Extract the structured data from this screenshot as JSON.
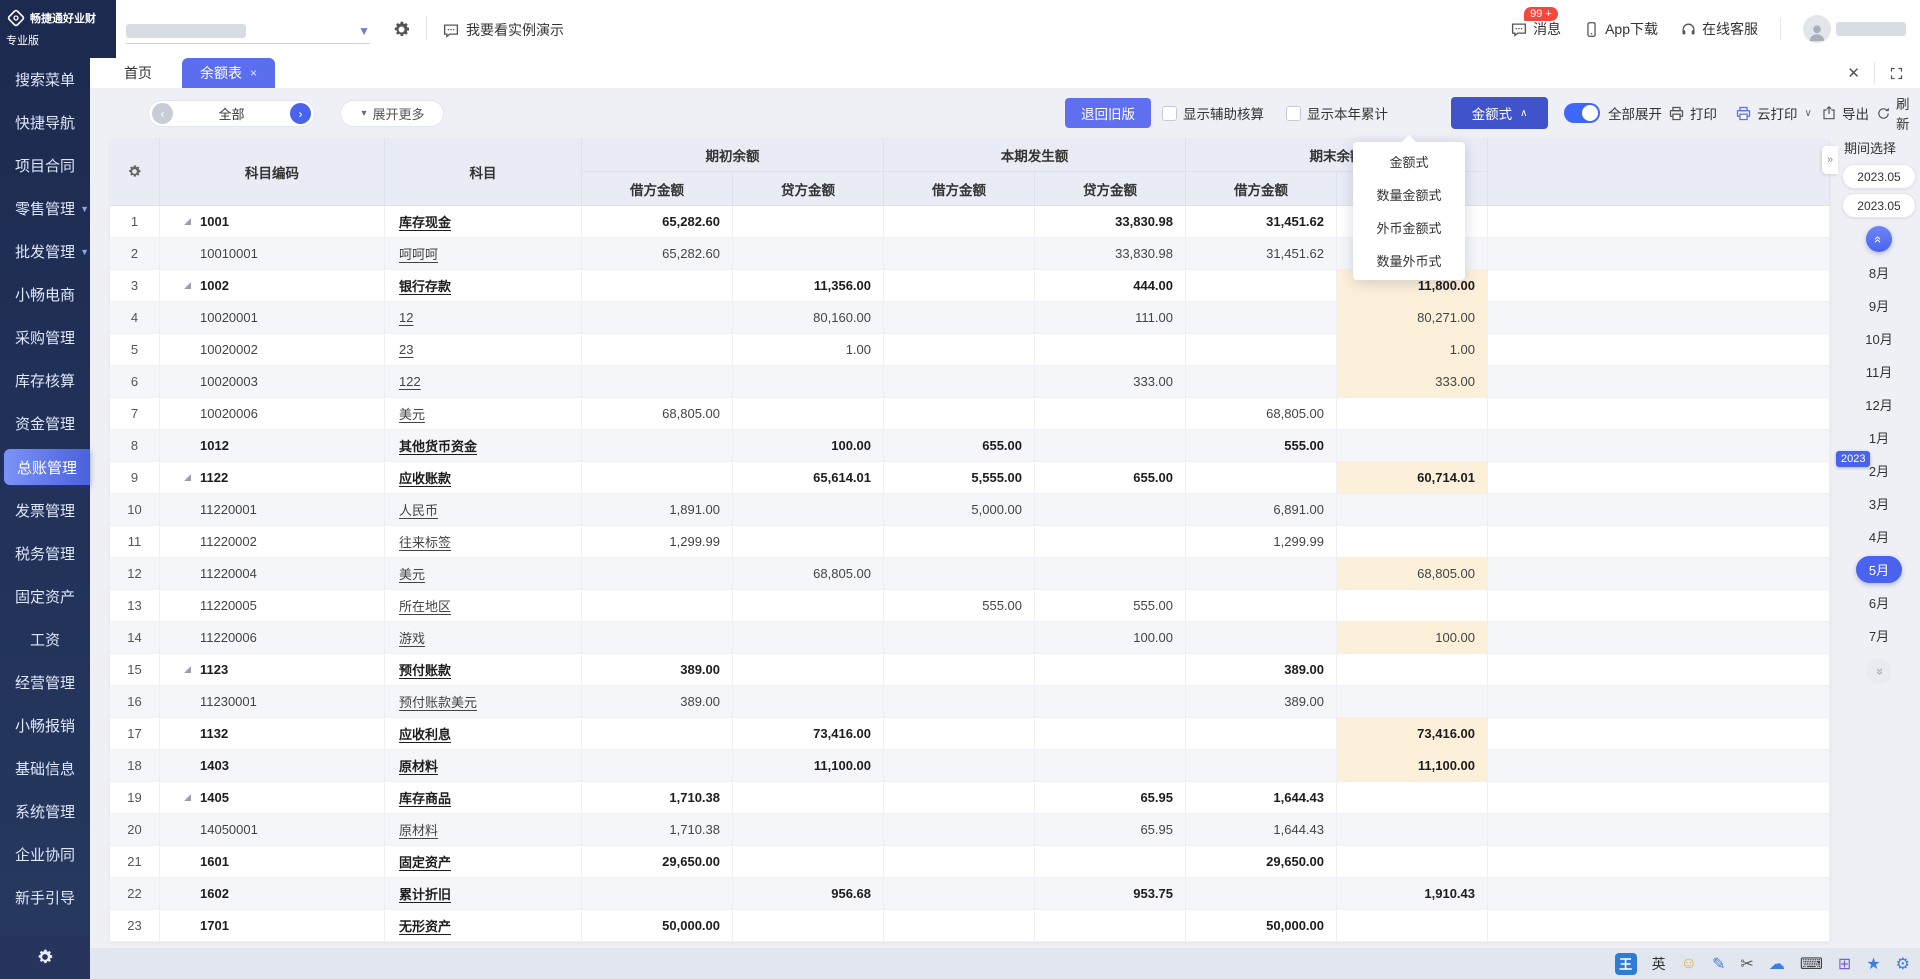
{
  "brand": {
    "name": "畅捷通好业财",
    "edition": "专业版"
  },
  "topbar": {
    "demo": "我要看实例演示",
    "messages": "消息",
    "badge": "99 +",
    "app_download": "App下载",
    "support": "在线客服"
  },
  "tabs": [
    {
      "label": "首页",
      "active": false
    },
    {
      "label": "余额表",
      "active": true,
      "close": "×"
    }
  ],
  "filter": {
    "all": "全部",
    "expand_more": "展开更多"
  },
  "actions": {
    "back_old": "退回旧版",
    "show_aux": "显示辅助核算",
    "show_ytd": "显示本年累计",
    "format": "金额式",
    "expand_all": "全部展开",
    "print": "打印",
    "cloud_print": "云打印",
    "export": "导出",
    "refresh": "刷新"
  },
  "format_menu": [
    "金额式",
    "数量金额式",
    "外币金额式",
    "数量外币式"
  ],
  "sidebar": {
    "items": [
      {
        "label": "搜索菜单"
      },
      {
        "label": "快捷导航"
      },
      {
        "label": "项目合同"
      },
      {
        "label": "零售管理",
        "arrow": true
      },
      {
        "label": "批发管理",
        "arrow": true
      },
      {
        "label": "小畅电商"
      },
      {
        "label": "采购管理"
      },
      {
        "label": "库存核算"
      },
      {
        "label": "资金管理"
      },
      {
        "label": "总账管理",
        "active": true
      },
      {
        "label": "发票管理"
      },
      {
        "label": "税务管理"
      },
      {
        "label": "固定资产"
      },
      {
        "label": "工资"
      },
      {
        "label": "经营管理"
      },
      {
        "label": "小畅报销"
      },
      {
        "label": "基础信息"
      },
      {
        "label": "系统管理"
      },
      {
        "label": "企业协同"
      },
      {
        "label": "新手引导"
      }
    ]
  },
  "table": {
    "groups": [
      "期初余额",
      "本期发生额",
      "期末余额"
    ],
    "headers": {
      "code": "科目编码",
      "subject": "科目"
    },
    "sub": {
      "debit": "借方金额",
      "credit": "贷方金额"
    },
    "rows": [
      {
        "num": 1,
        "code": "1001",
        "subject": "库存现金",
        "bold": true,
        "expand": true,
        "cells": [
          "65,282.60",
          "",
          "",
          "33,830.98",
          "31,451.62",
          ""
        ],
        "highlight": false
      },
      {
        "num": 2,
        "code": "10010001",
        "subject": "呵呵呵",
        "bold": false,
        "expand": false,
        "cells": [
          "65,282.60",
          "",
          "",
          "33,830.98",
          "31,451.62",
          ""
        ],
        "highlight": false
      },
      {
        "num": 3,
        "code": "1002",
        "subject": "银行存款",
        "bold": true,
        "expand": true,
        "cells": [
          "",
          "11,356.00",
          "",
          "444.00",
          "",
          "11,800.00"
        ],
        "highlight": true
      },
      {
        "num": 4,
        "code": "10020001",
        "subject": "12",
        "bold": false,
        "expand": false,
        "cells": [
          "",
          "80,160.00",
          "",
          "111.00",
          "",
          "80,271.00"
        ],
        "highlight": true
      },
      {
        "num": 5,
        "code": "10020002",
        "subject": "23",
        "bold": false,
        "expand": false,
        "cells": [
          "",
          "1.00",
          "",
          "",
          "",
          "1.00"
        ],
        "highlight": true
      },
      {
        "num": 6,
        "code": "10020003",
        "subject": "122",
        "bold": false,
        "expand": false,
        "cells": [
          "",
          "",
          "",
          "333.00",
          "",
          "333.00"
        ],
        "highlight": true
      },
      {
        "num": 7,
        "code": "10020006",
        "subject": "美元",
        "bold": false,
        "expand": false,
        "cells": [
          "68,805.00",
          "",
          "",
          "",
          "68,805.00",
          ""
        ],
        "highlight": false
      },
      {
        "num": 8,
        "code": "1012",
        "subject": "其他货币资金",
        "bold": true,
        "expand": false,
        "cells": [
          "",
          "100.00",
          "655.00",
          "",
          "555.00",
          ""
        ],
        "highlight": false
      },
      {
        "num": 9,
        "code": "1122",
        "subject": "应收账款",
        "bold": true,
        "expand": true,
        "cells": [
          "",
          "65,614.01",
          "5,555.00",
          "655.00",
          "",
          "60,714.01"
        ],
        "highlight": true
      },
      {
        "num": 10,
        "code": "11220001",
        "subject": "人民币",
        "bold": false,
        "expand": false,
        "cells": [
          "1,891.00",
          "",
          "5,000.00",
          "",
          "6,891.00",
          ""
        ],
        "highlight": false
      },
      {
        "num": 11,
        "code": "11220002",
        "subject": "往来标签",
        "bold": false,
        "expand": false,
        "cells": [
          "1,299.99",
          "",
          "",
          "",
          "1,299.99",
          ""
        ],
        "highlight": false
      },
      {
        "num": 12,
        "code": "11220004",
        "subject": "美元",
        "bold": false,
        "expand": false,
        "cells": [
          "",
          "68,805.00",
          "",
          "",
          "",
          "68,805.00"
        ],
        "highlight": true
      },
      {
        "num": 13,
        "code": "11220005",
        "subject": "所在地区",
        "bold": false,
        "expand": false,
        "cells": [
          "",
          "",
          "555.00",
          "555.00",
          "",
          ""
        ],
        "highlight": false
      },
      {
        "num": 14,
        "code": "11220006",
        "subject": "游戏",
        "bold": false,
        "expand": false,
        "cells": [
          "",
          "",
          "",
          "100.00",
          "",
          "100.00"
        ],
        "highlight": true
      },
      {
        "num": 15,
        "code": "1123",
        "subject": "预付账款",
        "bold": true,
        "expand": true,
        "cells": [
          "389.00",
          "",
          "",
          "",
          "389.00",
          ""
        ],
        "highlight": false
      },
      {
        "num": 16,
        "code": "11230001",
        "subject": "预付账款美元",
        "bold": false,
        "expand": false,
        "cells": [
          "389.00",
          "",
          "",
          "",
          "389.00",
          ""
        ],
        "highlight": false
      },
      {
        "num": 17,
        "code": "1132",
        "subject": "应收利息",
        "bold": true,
        "expand": false,
        "cells": [
          "",
          "73,416.00",
          "",
          "",
          "",
          "73,416.00"
        ],
        "highlight": true
      },
      {
        "num": 18,
        "code": "1403",
        "subject": "原材料",
        "bold": true,
        "expand": false,
        "cells": [
          "",
          "11,100.00",
          "",
          "",
          "",
          "11,100.00"
        ],
        "highlight": true
      },
      {
        "num": 19,
        "code": "1405",
        "subject": "库存商品",
        "bold": true,
        "expand": true,
        "cells": [
          "1,710.38",
          "",
          "",
          "65.95",
          "1,644.43",
          ""
        ],
        "highlight": false
      },
      {
        "num": 20,
        "code": "14050001",
        "subject": "原材料",
        "bold": false,
        "expand": false,
        "cells": [
          "1,710.38",
          "",
          "",
          "65.95",
          "1,644.43",
          ""
        ],
        "highlight": false
      },
      {
        "num": 21,
        "code": "1601",
        "subject": "固定资产",
        "bold": true,
        "expand": false,
        "cells": [
          "29,650.00",
          "",
          "",
          "",
          "29,650.00",
          ""
        ],
        "highlight": false
      },
      {
        "num": 22,
        "code": "1602",
        "subject": "累计折旧",
        "bold": true,
        "expand": false,
        "cells": [
          "",
          "956.68",
          "",
          "953.75",
          "",
          "1,910.43"
        ],
        "highlight": false
      },
      {
        "num": 23,
        "code": "1701",
        "subject": "无形资产",
        "bold": true,
        "expand": false,
        "cells": [
          "50,000.00",
          "",
          "",
          "",
          "50,000.00",
          ""
        ],
        "highlight": false
      }
    ]
  },
  "period": {
    "title": "期间选择",
    "buttons": [
      "2023.05",
      "2023.05"
    ],
    "year_badge": "2023",
    "months": [
      "8月",
      "9月",
      "10月",
      "11月",
      "12月",
      "1月",
      "2月",
      "3月",
      "4月",
      "5月",
      "6月",
      "7月"
    ],
    "selected_month": "5月"
  },
  "taskbar": {
    "items": [
      {
        "name": "ime-wang-icon",
        "glyph": "王",
        "color": "#ffffff",
        "type": "wang"
      },
      {
        "name": "ime-english-icon",
        "glyph": "英",
        "color": "#333333",
        "type": "text"
      },
      {
        "name": "emoji-icon",
        "glyph": "☺",
        "color": "#f0a93c"
      },
      {
        "name": "pen-icon",
        "glyph": "✎",
        "color": "#3d7de0"
      },
      {
        "name": "scissors-icon",
        "glyph": "✂",
        "color": "#555555"
      },
      {
        "name": "cloud-icon",
        "glyph": "☁",
        "color": "#3d7de0"
      },
      {
        "name": "keyboard-icon",
        "glyph": "⌨",
        "color": "#444444"
      },
      {
        "name": "grid-icon",
        "glyph": "⊞",
        "color": "#7a5fd0"
      },
      {
        "name": "star-icon",
        "glyph": "★",
        "color": "#3d7de0"
      },
      {
        "name": "settings-icon",
        "glyph": "⚙",
        "color": "#3d7de0"
      }
    ]
  },
  "colors": {
    "accent": "#5b6ef0",
    "accent_dark": "#4053cb",
    "sidebar_bg": "#1d2a50",
    "highlight_cell": "#fdf0da",
    "badge_red": "#f5483d",
    "header_bg": "#e9ecf5"
  }
}
